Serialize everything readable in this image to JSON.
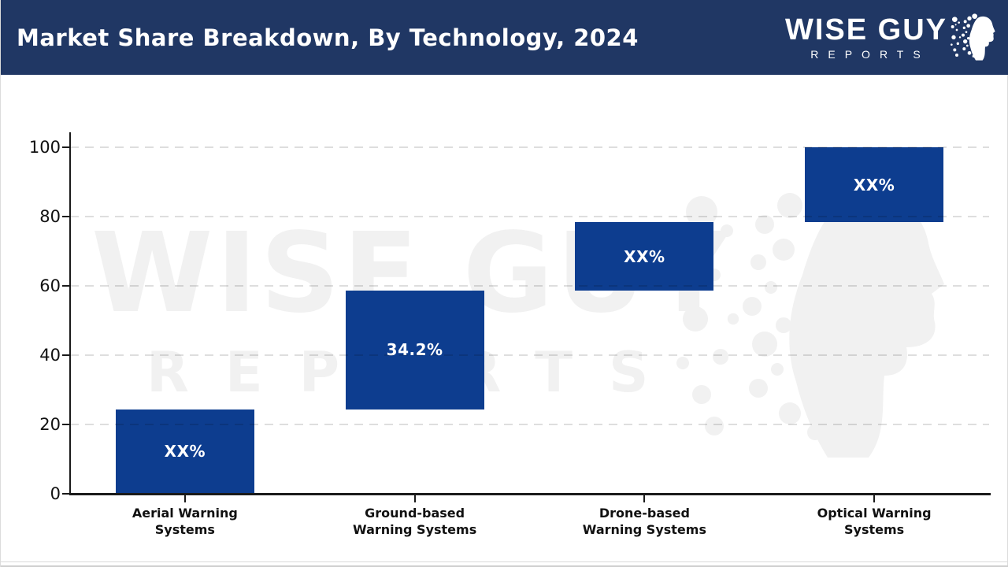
{
  "header": {
    "title": "Market Share Breakdown, By Technology, 2024",
    "brand": {
      "line1": "WISE GUY",
      "line2": "REPORTS"
    }
  },
  "watermark": {
    "line1": "WISE GUY",
    "line2": "REPORTS"
  },
  "colors": {
    "header_bg": "#203764",
    "bar": "#0d3d8f",
    "grid": "rgba(0,0,0,0.13)",
    "watermark": "#f1f1f1"
  },
  "chart_data": {
    "type": "bar",
    "subtype": "waterfall",
    "title": "Market Share Breakdown, By Technology, 2024",
    "categories": [
      "Aerial Warning Systems",
      "Ground-based Warning Systems",
      "Drone-based Warning Systems",
      "Optical Warning Systems"
    ],
    "category_lines": [
      [
        "Aerial Warning",
        "Systems"
      ],
      [
        "Ground-based",
        "Warning Systems"
      ],
      [
        "Drone-based",
        "Warning Systems"
      ],
      [
        "Optical Warning",
        "Systems"
      ]
    ],
    "segments": [
      {
        "label": "XX%",
        "start": 0,
        "end": 24.4,
        "value": 24.4
      },
      {
        "label": "34.2%",
        "start": 24.4,
        "end": 58.6,
        "value": 34.2
      },
      {
        "label": "XX%",
        "start": 58.6,
        "end": 78.4,
        "value": 19.8
      },
      {
        "label": "XX%",
        "start": 78.4,
        "end": 100,
        "value": 21.6
      }
    ],
    "yticks": [
      0,
      20,
      40,
      60,
      80,
      100
    ],
    "ylim": [
      0,
      100
    ],
    "xlabel": "",
    "ylabel": "",
    "legend": "none",
    "grid": "horizontal-dashed"
  }
}
